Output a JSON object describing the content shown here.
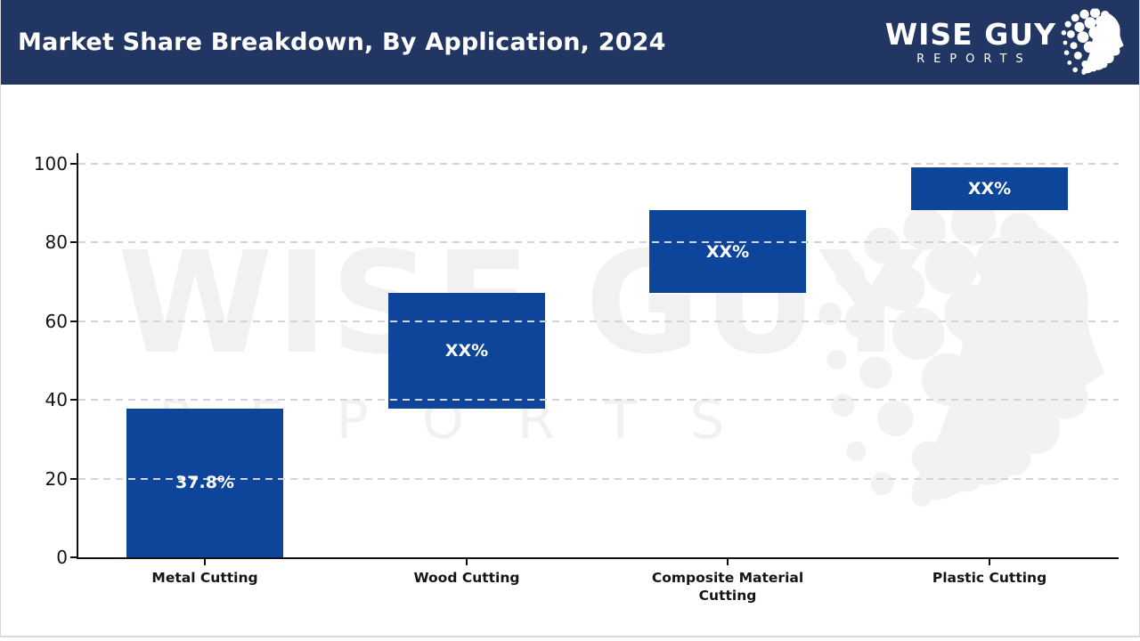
{
  "header": {
    "title": "Market Share Breakdown, By Application, 2024",
    "logo": {
      "brand": "WISE GUY",
      "sub": "REPORTS"
    }
  },
  "watermark": {
    "brand": "WISE GUY",
    "sub": "REPORTS"
  },
  "colors": {
    "header_bg": "#223663",
    "bar": "#0c4599",
    "grid": "#d4d4d4",
    "axis": "#111111",
    "bar_label": "#ffffff",
    "watermark": "#f1f1f1"
  },
  "chart_data": {
    "type": "bar",
    "subtype": "waterfall",
    "title": "Market Share Breakdown, By Application, 2024",
    "categories": [
      "Metal Cutting",
      "Wood Cutting",
      "Composite Material Cutting",
      "Plastic Cutting"
    ],
    "series": [
      {
        "name": "Market share (%)",
        "segments": [
          {
            "category": "Metal Cutting",
            "start": 0,
            "end": 37.8,
            "label": "37.8%"
          },
          {
            "category": "Wood Cutting",
            "start": 37.8,
            "end": 67.2,
            "label": "XX%"
          },
          {
            "category": "Composite Material Cutting",
            "start": 67.2,
            "end": 88.2,
            "label": "XX%"
          },
          {
            "category": "Plastic Cutting",
            "start": 88.2,
            "end": 99,
            "label": "XX%"
          }
        ]
      }
    ],
    "yticks": [
      0,
      20,
      40,
      60,
      80,
      100
    ],
    "ylim": [
      0,
      105
    ],
    "xlabel": "",
    "ylabel": "",
    "grid": "horizontal-dashed",
    "legend": false
  }
}
